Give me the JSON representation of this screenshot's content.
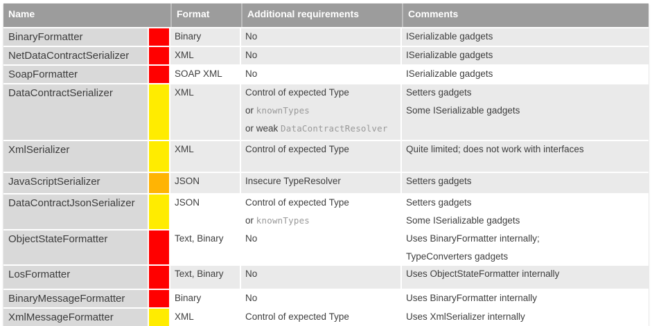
{
  "table": {
    "columns": [
      "Name",
      "Format",
      "Additional requirements",
      "Comments"
    ],
    "colors": {
      "header_bg": "#9c9c9c",
      "header_text": "#ffffff",
      "name_column_bg": "#d9d9d9",
      "band_gray": "#eaeaea",
      "band_white": "#ffffff",
      "risk_red": "#ff0000",
      "risk_yellow": "#ffec00",
      "risk_orange": "#ffb404",
      "body_text": "#3d3d3d",
      "code_text": "#999999"
    },
    "rows": [
      {
        "name": "BinaryFormatter",
        "risk": "red",
        "band": "gray",
        "format": "Binary",
        "requirements": [
          [
            "No"
          ]
        ],
        "comments": [
          [
            "ISerializable gadgets"
          ]
        ]
      },
      {
        "name": "NetDataContractSerializer",
        "risk": "red",
        "band": "gray",
        "format": "XML",
        "requirements": [
          [
            "No"
          ]
        ],
        "comments": [
          [
            "ISerializable gadgets"
          ]
        ]
      },
      {
        "name": "SoapFormatter",
        "risk": "red",
        "band": "white",
        "format": "SOAP XML",
        "requirements": [
          [
            "No"
          ]
        ],
        "comments": [
          [
            "ISerializable gadgets"
          ]
        ]
      },
      {
        "name": "DataContractSerializer",
        "risk": "yellow",
        "band": "gray",
        "format": "XML",
        "requirements": [
          [
            "Control of expected Type"
          ],
          [
            "or ",
            {
              "code": "knownTypes"
            }
          ],
          [
            "or weak ",
            {
              "code": "DataContractResolver"
            }
          ]
        ],
        "comments": [
          [
            "Setters gadgets"
          ],
          [
            "Some ISerializable gadgets"
          ]
        ]
      },
      {
        "name": "XmlSerializer",
        "risk": "yellow",
        "band": "gray",
        "format": "XML",
        "requirements": [
          [
            "Control of expected Type"
          ]
        ],
        "comments": [
          [
            "Quite limited; does not work with interfaces"
          ]
        ]
      },
      {
        "name": "JavaScriptSerializer",
        "risk": "orange",
        "band": "gray",
        "format": "JSON",
        "requirements": [
          [
            "Insecure TypeResolver"
          ]
        ],
        "comments": [
          [
            "Setters gadgets"
          ]
        ]
      },
      {
        "name": "DataContractJsonSerializer",
        "risk": "yellow",
        "band": "white",
        "format": "JSON",
        "requirements": [
          [
            "Control of expected Type"
          ],
          [
            "or ",
            {
              "code": "knownTypes"
            }
          ]
        ],
        "comments": [
          [
            "Setters gadgets"
          ],
          [
            "Some ISerializable gadgets"
          ]
        ]
      },
      {
        "name": "ObjectStateFormatter",
        "risk": "red",
        "band": "white",
        "format": "Text, Binary",
        "requirements": [
          [
            "No"
          ]
        ],
        "comments": [
          [
            "Uses BinaryFormatter internally;"
          ],
          [
            "TypeConverters gadgets"
          ]
        ]
      },
      {
        "name": "LosFormatter",
        "risk": "red",
        "band": "gray",
        "format": "Text, Binary",
        "requirements": [
          [
            "No"
          ]
        ],
        "comments": [
          [
            "Uses ObjectStateFormatter internally"
          ]
        ]
      },
      {
        "name": "BinaryMessageFormatter",
        "risk": "red",
        "band": "white",
        "format": "Binary",
        "requirements": [
          [
            "No"
          ]
        ],
        "comments": [
          [
            "Uses BinaryFormatter internally"
          ]
        ]
      },
      {
        "name": "XmlMessageFormatter",
        "risk": "yellow",
        "band": "white",
        "format": "XML",
        "requirements": [
          [
            "Control of expected Type"
          ]
        ],
        "comments": [
          [
            "Uses XmlSerializer internally"
          ]
        ]
      }
    ]
  }
}
